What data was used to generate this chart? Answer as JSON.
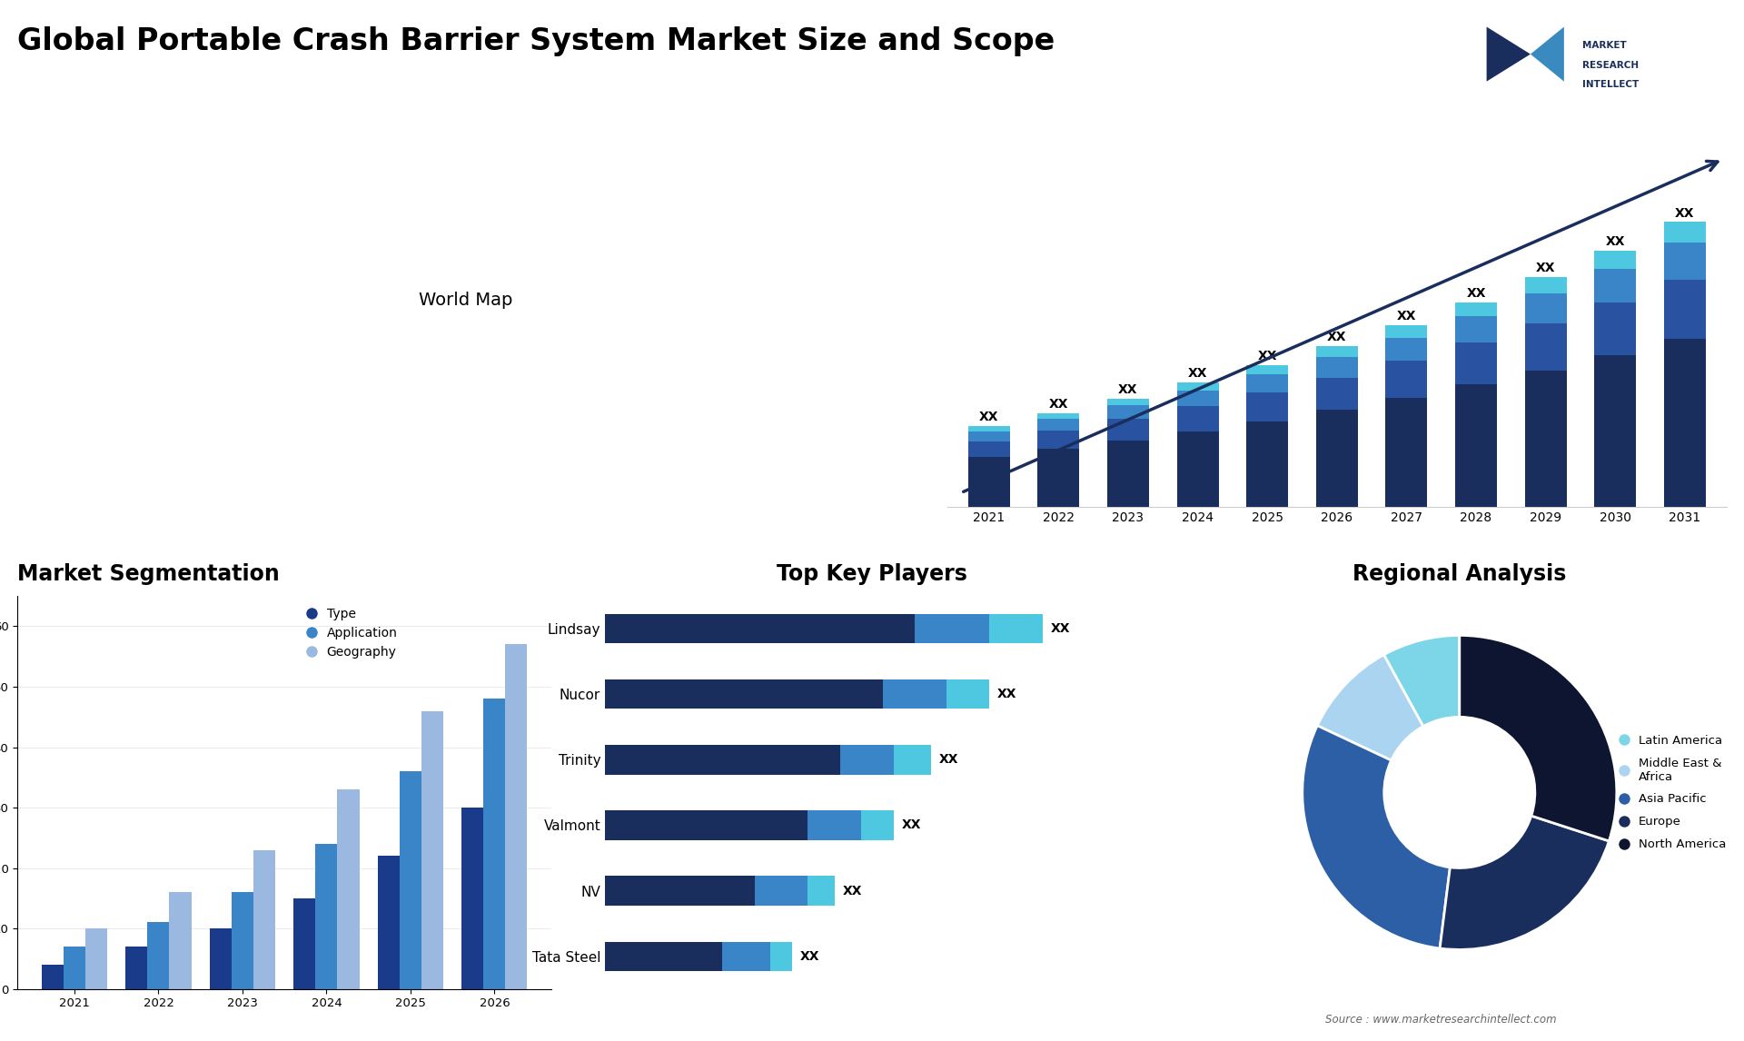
{
  "title": "Global Portable Crash Barrier System Market Size and Scope",
  "bg_color": "#ffffff",
  "bar_chart": {
    "years": [
      "2021",
      "2022",
      "2023",
      "2024",
      "2025",
      "2026",
      "2027",
      "2028",
      "2029",
      "2030",
      "2031"
    ],
    "segment1": [
      1.0,
      1.15,
      1.32,
      1.5,
      1.7,
      1.92,
      2.16,
      2.42,
      2.7,
      3.0,
      3.32
    ],
    "segment2": [
      0.3,
      0.36,
      0.42,
      0.49,
      0.56,
      0.64,
      0.73,
      0.83,
      0.93,
      1.05,
      1.17
    ],
    "segment3": [
      0.2,
      0.23,
      0.27,
      0.31,
      0.36,
      0.41,
      0.46,
      0.52,
      0.59,
      0.66,
      0.74
    ],
    "segment4": [
      0.1,
      0.12,
      0.14,
      0.16,
      0.19,
      0.22,
      0.25,
      0.28,
      0.32,
      0.36,
      0.4
    ],
    "color1": "#1a2e5e",
    "color2": "#2952a0",
    "color3": "#3a85c8",
    "color4": "#4ec8e0"
  },
  "seg_chart": {
    "years": [
      "2021",
      "2022",
      "2023",
      "2024",
      "2025",
      "2026"
    ],
    "type_vals": [
      4,
      7,
      10,
      15,
      22,
      30
    ],
    "app_vals": [
      7,
      11,
      16,
      24,
      36,
      48
    ],
    "geo_vals": [
      10,
      16,
      23,
      33,
      46,
      57
    ],
    "color_type": "#1a3a8a",
    "color_app": "#3a85c8",
    "color_geo": "#9ab8e0"
  },
  "players": [
    "Lindsay",
    "Nucor",
    "Trinity",
    "Valmont",
    "NV",
    "Tata Steel"
  ],
  "player_seg1": [
    0.58,
    0.52,
    0.44,
    0.38,
    0.28,
    0.22
  ],
  "player_seg2": [
    0.14,
    0.12,
    0.1,
    0.1,
    0.1,
    0.09
  ],
  "player_seg3": [
    0.1,
    0.08,
    0.07,
    0.06,
    0.05,
    0.04
  ],
  "player_color1": "#1a2e5e",
  "player_color2": "#3a85c8",
  "player_color3": "#4ec8e0",
  "pie_data": [
    8,
    10,
    30,
    22,
    30
  ],
  "pie_colors": [
    "#7dd6e8",
    "#aad4f0",
    "#2d5fa6",
    "#1a2e5e",
    "#0d1530"
  ],
  "pie_labels": [
    "Latin America",
    "Middle East &\nAfrica",
    "Asia Pacific",
    "Europe",
    "North America"
  ],
  "legend_seg": [
    "Type",
    "Application",
    "Geography"
  ],
  "section_titles": {
    "market_seg": "Market Segmentation",
    "key_players": "Top Key Players",
    "regional": "Regional Analysis"
  },
  "source_text": "Source : www.marketresearchintellect.com"
}
